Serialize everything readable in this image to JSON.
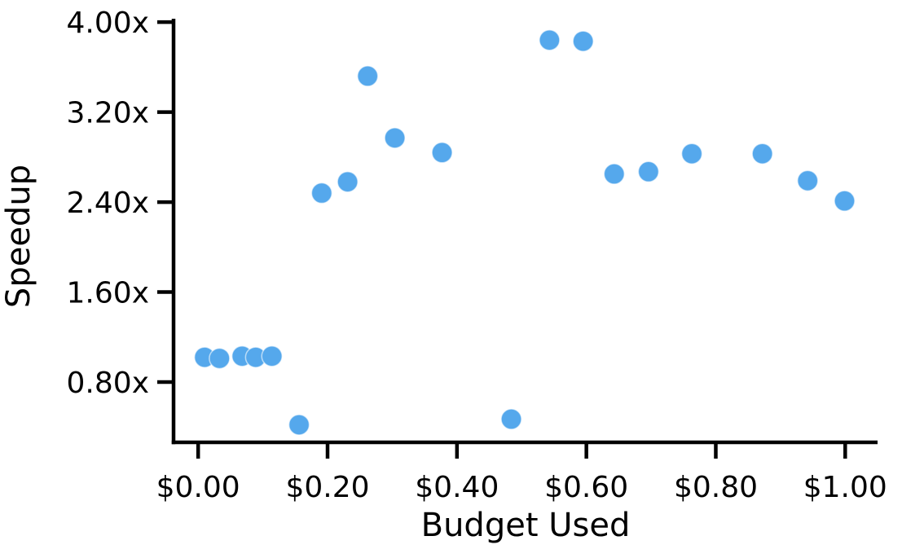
{
  "chart_data": {
    "type": "scatter",
    "title": "",
    "xlabel": "Budget Used",
    "ylabel": "Speedup",
    "xlim": [
      -0.038,
      1.05
    ],
    "ylim": [
      0.264,
      4.03
    ],
    "grid": false,
    "legend": null,
    "axis_color": "#000000",
    "marker_color": "#55a8ec",
    "marker_radius_px": 12.5,
    "x_ticks": [
      {
        "value": 0.0,
        "label": "$0.00"
      },
      {
        "value": 0.2,
        "label": "$0.20"
      },
      {
        "value": 0.4,
        "label": "$0.40"
      },
      {
        "value": 0.6,
        "label": "$0.60"
      },
      {
        "value": 0.8,
        "label": "$0.80"
      },
      {
        "value": 1.0,
        "label": "$1.00"
      }
    ],
    "y_ticks": [
      {
        "value": 0.8,
        "label": "0.80x"
      },
      {
        "value": 1.6,
        "label": "1.60x"
      },
      {
        "value": 2.4,
        "label": "2.40x"
      },
      {
        "value": 3.2,
        "label": "3.20x"
      },
      {
        "value": 4.0,
        "label": "4.00x"
      }
    ],
    "points": [
      [
        0.01,
        1.02
      ],
      [
        0.033,
        1.01
      ],
      [
        0.068,
        1.03
      ],
      [
        0.089,
        1.02
      ],
      [
        0.114,
        1.03
      ],
      [
        0.156,
        0.42
      ],
      [
        0.191,
        2.48
      ],
      [
        0.231,
        2.58
      ],
      [
        0.262,
        3.52
      ],
      [
        0.304,
        2.97
      ],
      [
        0.377,
        2.84
      ],
      [
        0.484,
        0.47
      ],
      [
        0.543,
        3.84
      ],
      [
        0.595,
        3.83
      ],
      [
        0.643,
        2.65
      ],
      [
        0.696,
        2.67
      ],
      [
        0.763,
        2.83
      ],
      [
        0.872,
        2.83
      ],
      [
        0.942,
        2.59
      ],
      [
        0.999,
        2.41
      ]
    ]
  }
}
